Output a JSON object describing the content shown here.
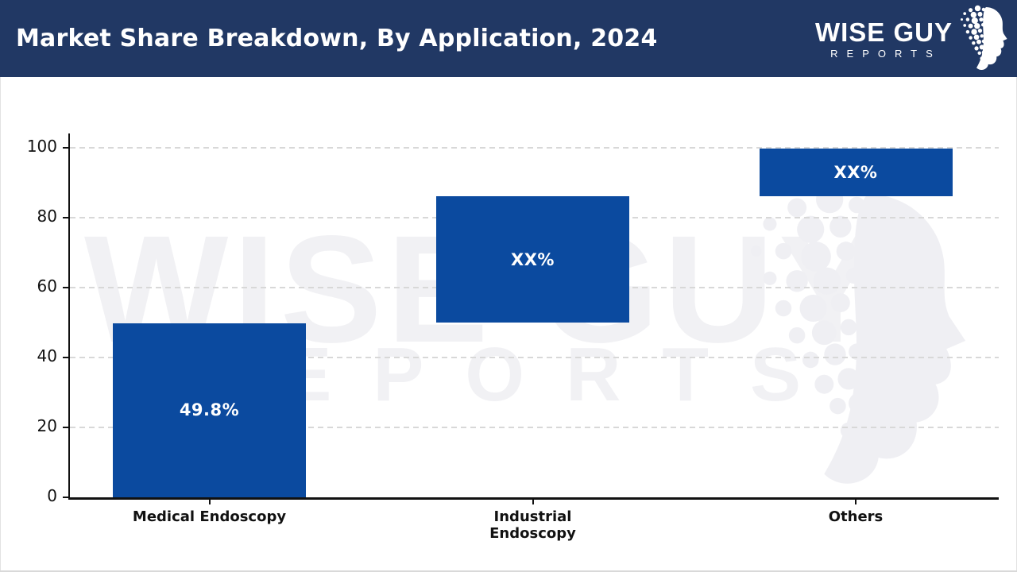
{
  "header": {
    "title": "Market Share Breakdown, By Application, 2024",
    "bg_color": "#213864",
    "logo": {
      "line1": "WISE GUY",
      "line2": "REPORTS"
    }
  },
  "watermark": {
    "line1": "WISE GUY",
    "line2": "REPORTS"
  },
  "chart_data": {
    "type": "bar",
    "variant": "floating-breakdown-segments",
    "title": "Market Share Breakdown, By Application, 2024",
    "categories": [
      "Medical Endoscopy",
      "Industrial Endoscopy",
      "Others"
    ],
    "x_label_lines": [
      [
        "Medical Endoscopy"
      ],
      [
        "Industrial",
        "Endoscopy"
      ],
      [
        "Others"
      ]
    ],
    "series": [
      {
        "name": "Market share (%)",
        "segments": [
          {
            "category": "Medical Endoscopy",
            "start": 0,
            "end": 49.8,
            "label": "49.8%"
          },
          {
            "category": "Industrial Endoscopy",
            "start": 50,
            "end": 86.1,
            "label": "XX%"
          },
          {
            "category": "Others",
            "start": 86.1,
            "end": 99.8,
            "label": "XX%"
          }
        ]
      }
    ],
    "ylim": [
      0,
      100
    ],
    "yticks": [
      0,
      20,
      40,
      60,
      80,
      100
    ],
    "xlabel": "",
    "ylabel": "",
    "grid": "horizontal dashed",
    "grid_color": "#d8d8d8",
    "bar_color": "#0B4A9F",
    "label_color": "#ffffff",
    "axis_color": "#111111",
    "legend": "none"
  }
}
